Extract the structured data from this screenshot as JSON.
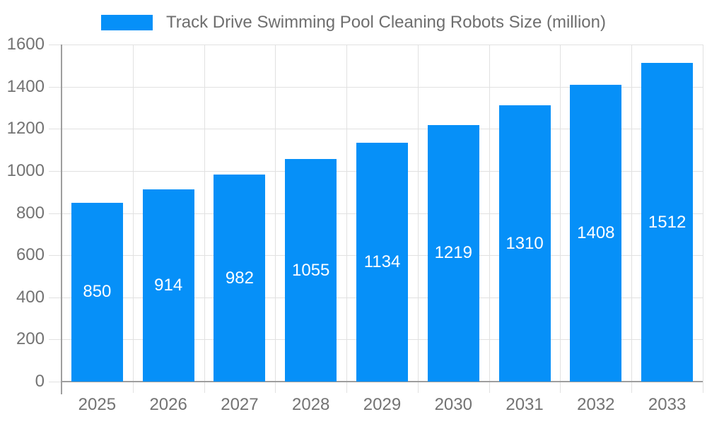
{
  "chart_data": {
    "type": "bar",
    "title": "Track Drive Swimming Pool Cleaning Robots Size (million)",
    "categories": [
      "2025",
      "2026",
      "2027",
      "2028",
      "2029",
      "2030",
      "2031",
      "2032",
      "2033"
    ],
    "values": [
      850,
      914,
      982,
      1055,
      1134,
      1219,
      1310,
      1408,
      1512
    ],
    "xlabel": "",
    "ylabel": "",
    "ylim": [
      0,
      1600
    ],
    "ytick_step": 200,
    "ytick_labels": [
      "0",
      "200",
      "400",
      "600",
      "800",
      "1000",
      "1200",
      "1400",
      "1600"
    ],
    "grid": true,
    "legend_position": "top-center",
    "colors": {
      "bar": "#0690F8",
      "bar_value_label": "#FFFFFF",
      "axis_text": "#737373",
      "legend_text": "#6E6E6E",
      "gridline": "#E1E1E1",
      "axis_line": "#9E9E9E",
      "background": "#FFFFFF"
    }
  }
}
